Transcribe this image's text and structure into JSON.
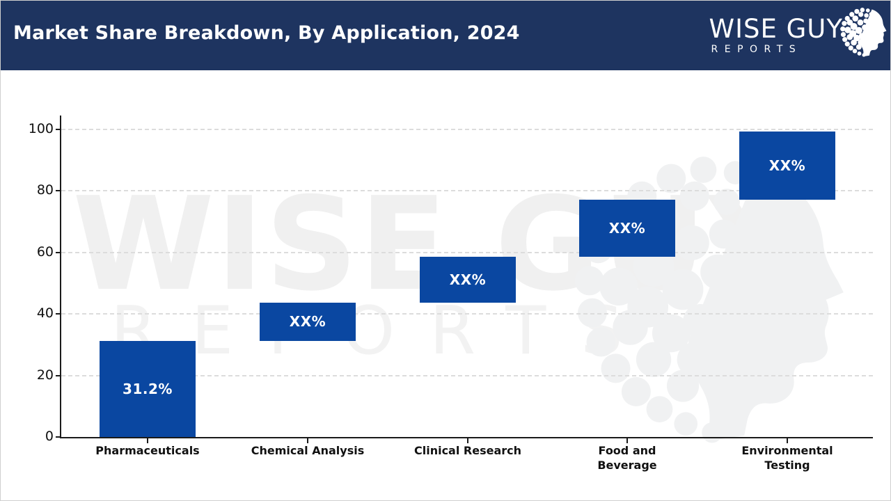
{
  "header": {
    "title": "Market Share Breakdown, By Application, 2024",
    "logo": {
      "wordmark": "WISE GUY",
      "subtext": "REPORTS"
    }
  },
  "watermark": {
    "wordmark": "WISE GUY",
    "subtext": "REPORTS"
  },
  "chart_data": {
    "type": "bar",
    "subtype": "floating-waterfall",
    "title": "Market Share Breakdown, By Application, 2024",
    "xlabel": "",
    "ylabel": "",
    "ylim": [
      0,
      104
    ],
    "yticks": [
      0,
      20,
      40,
      60,
      80,
      100
    ],
    "grid": "horizontal-dashed",
    "legend": "none",
    "bar_color": "#0a47a1",
    "value_label_color": "#ffffff",
    "categories": [
      "Pharmaceuticals",
      "Chemical Analysis",
      "Clinical Research",
      "Food and Beverage",
      "Environmental Testing"
    ],
    "segments": [
      {
        "category": "Pharmaceuticals",
        "start": 0,
        "end": 31.2,
        "size": 31.2,
        "label": "31.2%"
      },
      {
        "category": "Chemical Analysis",
        "start": 31.2,
        "end": 43.7,
        "size": 12.5,
        "label": "XX%"
      },
      {
        "category": "Clinical Research",
        "start": 43.7,
        "end": 58.5,
        "size": 14.8,
        "label": "XX%"
      },
      {
        "category": "Food and Beverage",
        "start": 58.5,
        "end": 77.2,
        "size": 18.7,
        "label": "XX%"
      },
      {
        "category": "Environmental Testing",
        "start": 77.2,
        "end": 99.3,
        "size": 22.1,
        "label": "XX%"
      }
    ]
  }
}
